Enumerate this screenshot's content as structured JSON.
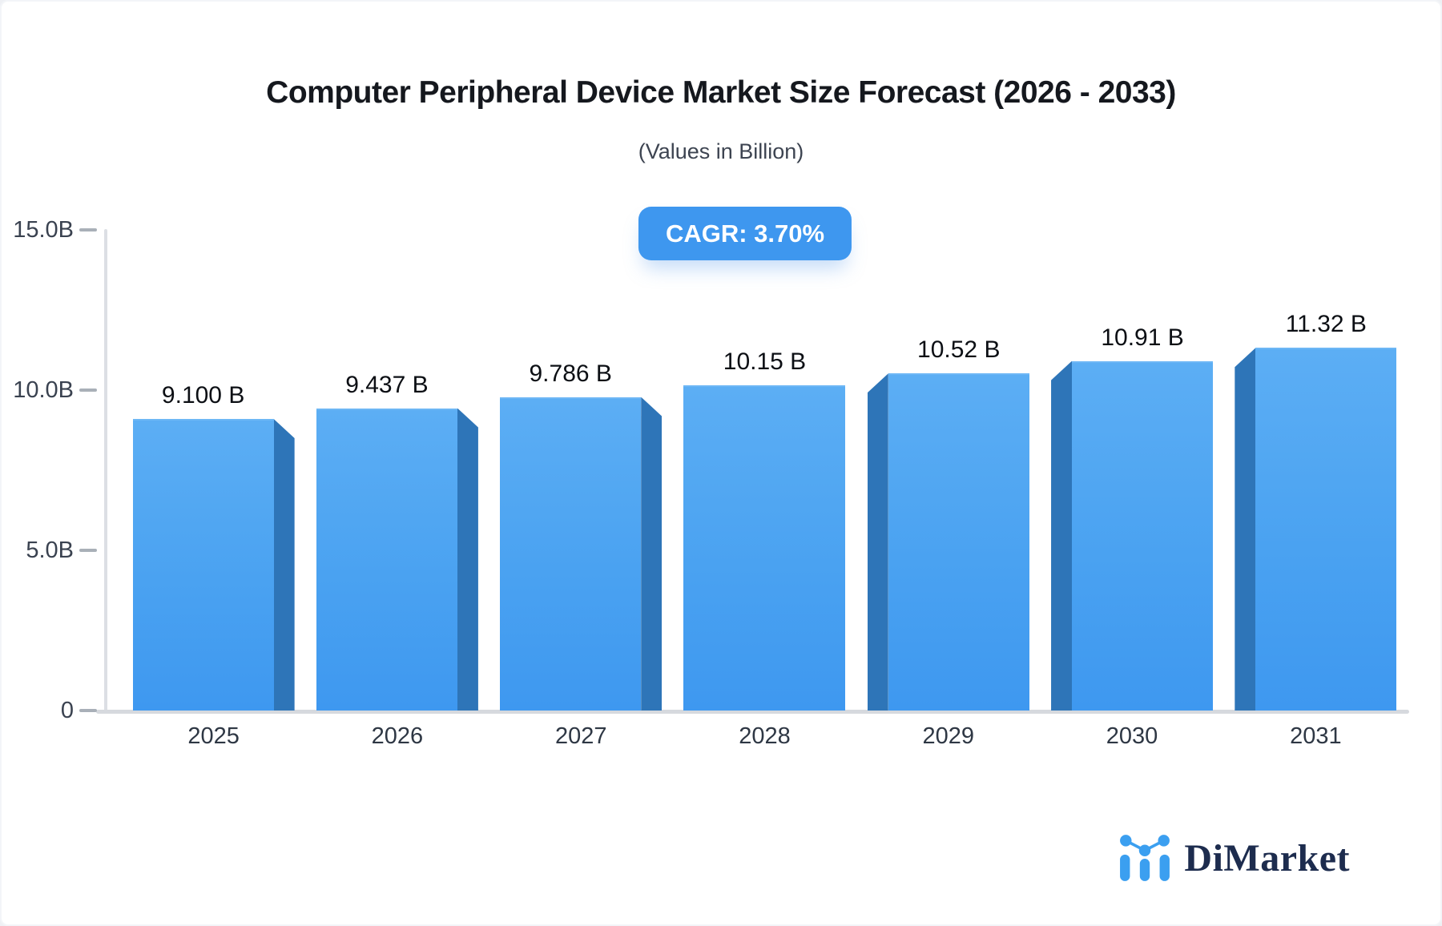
{
  "header": {
    "title": "Computer Peripheral Device Market Size Forecast (2026 - 2033)",
    "subtitle": "(Values in Billion)"
  },
  "badge": {
    "label": "CAGR: 3.70%",
    "color": "#3e97ef",
    "text_color": "#ffffff"
  },
  "chart_data": {
    "type": "bar",
    "title": "Computer Peripheral Device Market Size Forecast (2026 - 2033)",
    "subtitle": "(Values in Billion)",
    "categories": [
      "2025",
      "2026",
      "2027",
      "2028",
      "2029",
      "2030",
      "2031"
    ],
    "values": [
      9.1,
      9.437,
      9.786,
      10.15,
      10.52,
      10.91,
      11.32
    ],
    "value_labels": [
      "9.100 B",
      "9.437 B",
      "9.786 B",
      "10.15 B",
      "10.52 B",
      "10.91 B",
      "11.32 B"
    ],
    "bar_3d_side": [
      "right",
      "right",
      "right",
      "none",
      "left",
      "left",
      "left"
    ],
    "xlabel": "",
    "ylabel": "",
    "ylim": [
      0,
      15
    ],
    "yticks": [
      {
        "label": "15.0B",
        "value": 15
      },
      {
        "label": "10.0B",
        "value": 10
      },
      {
        "label": "5.0B",
        "value": 5
      },
      {
        "label": "0",
        "value": 0
      }
    ],
    "grid": false,
    "legend": false,
    "bar_color_top": "#5caef4",
    "bar_color_bottom": "#3e98f0",
    "bar_side_color": "#2e75b8"
  },
  "logo": {
    "text": "DiMarket",
    "icon": "bar-line-chart-icon",
    "icon_color": "#3b9ff0",
    "text_color": "#1d2c4e"
  }
}
